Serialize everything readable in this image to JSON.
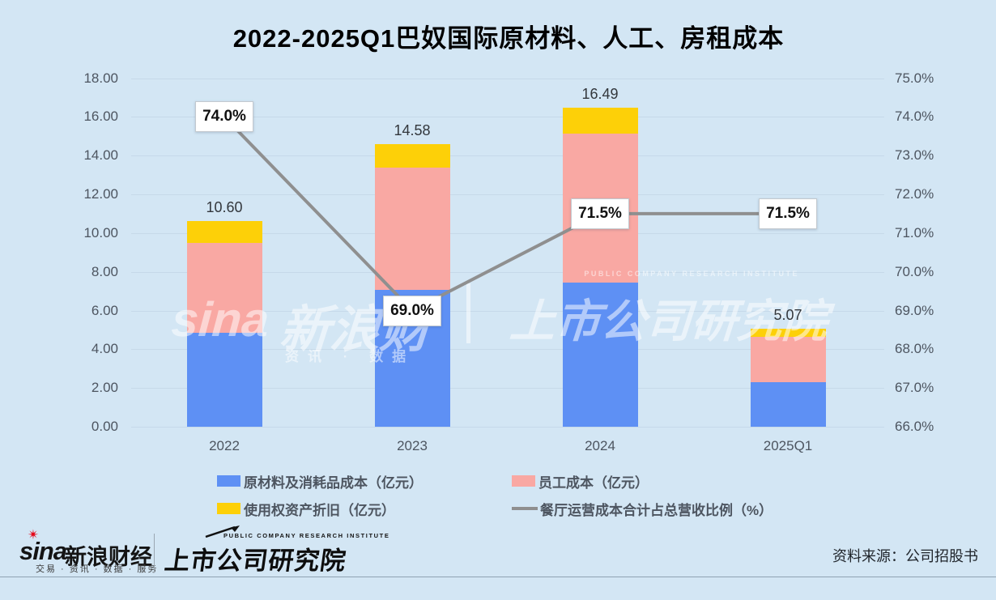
{
  "title": "2022-2025Q1巴奴国际原材料、人工、房租成本",
  "chart_data": {
    "type": "bar",
    "stacked": true,
    "grid": true,
    "legend_position": "bottom",
    "title": "2022-2025Q1巴奴国际原材料、人工、房租成本",
    "categories": [
      "2022",
      "2023",
      "2024",
      "2025Q1"
    ],
    "series": [
      {
        "name": "原材料及消耗品成本（亿元）",
        "color": "#5e90f4",
        "values": [
          4.84,
          7.05,
          7.46,
          2.29
        ]
      },
      {
        "name": "员工成本（亿元）",
        "color": "#f9a8a3",
        "values": [
          4.67,
          6.34,
          7.67,
          2.36
        ]
      },
      {
        "name": "使用权资产折旧（亿元）",
        "color": "#fdd008",
        "values": [
          1.09,
          1.19,
          1.36,
          0.42
        ]
      }
    ],
    "bar_totals": [
      "10.60",
      "14.58",
      "16.49",
      "5.07"
    ],
    "line_series": {
      "name": "餐厅运营成本合计占总营收比例（%）",
      "color": "#8f8f8f",
      "values": [
        74.0,
        69.0,
        71.5,
        71.5
      ],
      "labels": [
        "74.0%",
        "69.0%",
        "71.5%",
        "71.5%"
      ]
    },
    "left_axis": {
      "min": 0,
      "max": 18,
      "ticks": [
        "18.00",
        "16.00",
        "14.00",
        "12.00",
        "10.00",
        "8.00",
        "6.00",
        "4.00",
        "2.00",
        "0.00"
      ]
    },
    "right_axis": {
      "min": 66,
      "max": 75,
      "ticks": [
        "75.0%",
        "74.0%",
        "73.0%",
        "72.0%",
        "71.0%",
        "70.0%",
        "69.0%",
        "68.0%",
        "67.0%",
        "66.0%"
      ]
    }
  },
  "watermark": {
    "sina_latin": "sina",
    "sina_cn": "新浪财",
    "tagline": "资讯 · 数据",
    "institute_en": "PUBLIC COMPANY RESEARCH INSTITUTE",
    "institute_cn": "上市公司研究院"
  },
  "footer": {
    "sina_latin": "sina",
    "sina_brand": "新浪财经",
    "sina_tagline": "交易 · 资讯 · 数据 · 服务",
    "institute_en": "PUBLIC COMPANY RESEARCH INSTITUTE",
    "institute_cn": "上市公司研究院",
    "source": "资料来源：公司招股书"
  },
  "colors": {
    "background": "#d3e6f4",
    "gridline": "#c6d9e9",
    "axis_text": "#4d5560",
    "line": "#8f8f8f"
  }
}
